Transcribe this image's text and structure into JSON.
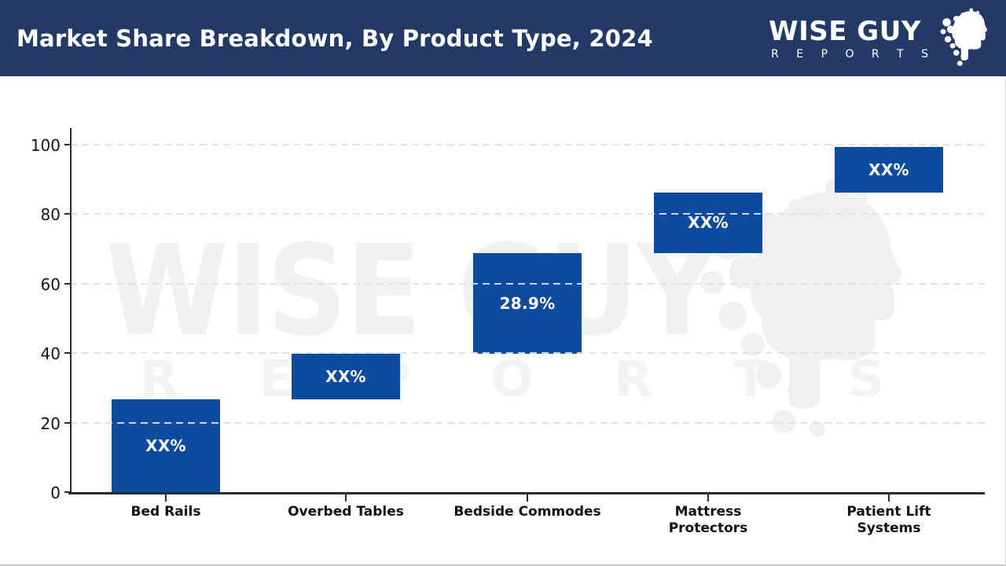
{
  "header": {
    "title": "Market Share Breakdown, By Product Type, 2024",
    "background_color": "#233a67"
  },
  "logo": {
    "line1": "WISE GUY",
    "line2": "R E P O R T S"
  },
  "watermark": {
    "line1": "WISE GUY",
    "line2": "R E P O R T S"
  },
  "chart_data": {
    "type": "bar",
    "subtype": "waterfall",
    "title": "Market Share Breakdown, By Product Type, 2024",
    "categories": [
      "Bed Rails",
      "Overbed Tables",
      "Bedside Commodes",
      "Mattress Protectors",
      "Patient Lift Systems"
    ],
    "category_display": [
      "Bed Rails",
      "Overbed Tables",
      "Bedside Commodes",
      "Mattress\nProtectors",
      "Patient Lift\nSystems"
    ],
    "segments": [
      {
        "category": "Bed Rails",
        "start": 0,
        "end": 26.7,
        "label": "XX%"
      },
      {
        "category": "Overbed Tables",
        "start": 26.7,
        "end": 39.8,
        "label": "XX%"
      },
      {
        "category": "Bedside Commodes",
        "start": 39.8,
        "end": 68.7,
        "label": "28.9%"
      },
      {
        "category": "Mattress Protectors",
        "start": 68.7,
        "end": 86.3,
        "label": "XX%"
      },
      {
        "category": "Patient Lift Systems",
        "start": 86.3,
        "end": 99.4,
        "label": "XX%"
      }
    ],
    "yticks": [
      0,
      20,
      40,
      60,
      80,
      100
    ],
    "ylim": [
      0,
      105
    ],
    "xlabel": "",
    "ylabel": "",
    "grid": true,
    "grid_style": "dashed",
    "legend": false,
    "bar_color": "#0d4ba0",
    "bar_label_color": "#ffffff",
    "grid_color": "#e0e0e0",
    "axis_color": "#2b2b2b",
    "tick_text_color": "#151515"
  }
}
